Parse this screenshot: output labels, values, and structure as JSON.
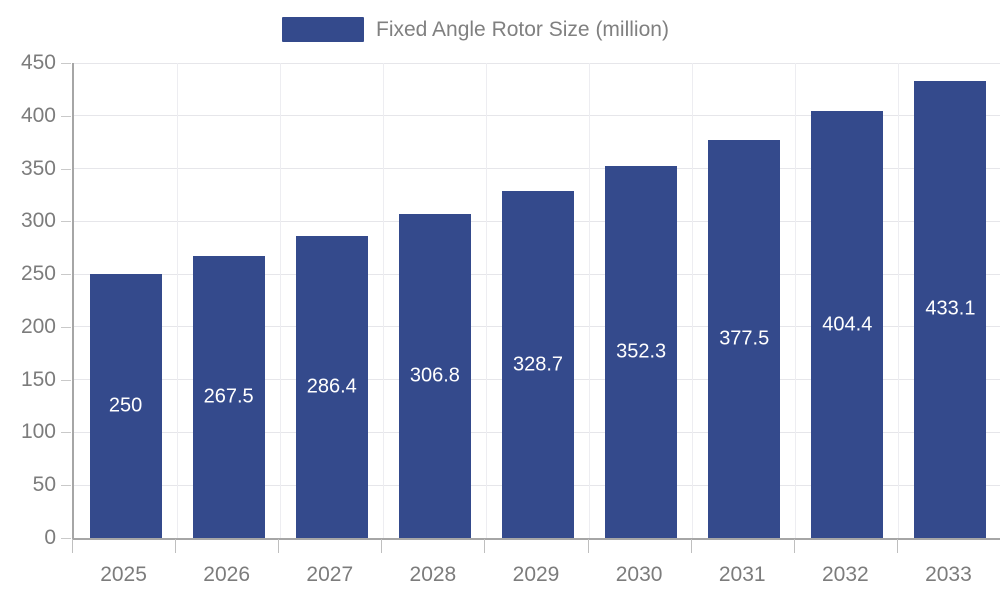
{
  "chart_data": {
    "type": "bar",
    "title": "",
    "legend": {
      "position": "top",
      "label": "Fixed Angle Rotor Size (million)"
    },
    "categories": [
      "2025",
      "2026",
      "2027",
      "2028",
      "2029",
      "2030",
      "2031",
      "2032",
      "2033"
    ],
    "series": [
      {
        "name": "Fixed Angle Rotor Size (million)",
        "values": [
          250,
          267.5,
          286.4,
          306.8,
          328.7,
          352.3,
          377.5,
          404.4,
          433.1
        ],
        "value_labels": [
          "250",
          "267.5",
          "286.4",
          "306.8",
          "328.7",
          "352.3",
          "377.5",
          "404.4",
          "433.1"
        ]
      }
    ],
    "xlabel": "",
    "ylabel": "",
    "ylim": [
      0,
      450
    ],
    "yticks": [
      0,
      50,
      100,
      150,
      200,
      250,
      300,
      350,
      400,
      450
    ],
    "grid": true,
    "colors": {
      "bar": "#344a8c",
      "value_label_text": "#ffffff",
      "axis_text": "#7c7c7c",
      "gridline_h": "#e6e6ea",
      "gridline_v": "#ededf1",
      "axis_line": "#a6a6a6",
      "background": "#ffffff"
    }
  }
}
